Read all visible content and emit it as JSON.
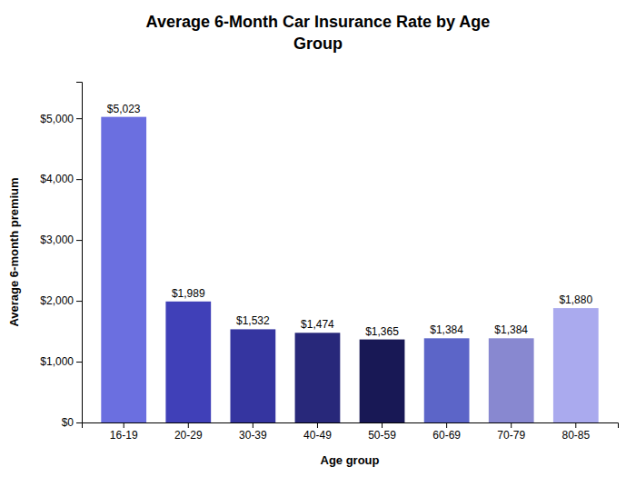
{
  "chart_data": {
    "type": "bar",
    "title": "Average 6-Month Car Insurance Rate by Age\nGroup",
    "x_label": "Age group",
    "y_label": "Average 6-month premium",
    "categories": [
      "16-19",
      "20-29",
      "30-39",
      "40-49",
      "50-59",
      "60-69",
      "70-79",
      "80-85"
    ],
    "values": [
      5023,
      1989,
      1532,
      1474,
      1365,
      1384,
      1384,
      1880
    ],
    "value_labels": [
      "$5,023",
      "$1,989",
      "$1,532",
      "$1,474",
      "$1,365",
      "$1,384",
      "$1,384",
      "$1,880"
    ],
    "data_labels": true,
    "colors": [
      "#6B6FE0",
      "#4040B8",
      "#3535A0",
      "#28287A",
      "#181855",
      "#5C65C8",
      "#8888D0",
      "#AAAAEE"
    ],
    "ylim": [
      0,
      5600
    ],
    "yticks": [
      {
        "value": 0,
        "label": "$0"
      },
      {
        "value": 1000,
        "label": "$1,000"
      },
      {
        "value": 2000,
        "label": "$2,000"
      },
      {
        "value": 3000,
        "label": "$3,000"
      },
      {
        "value": 4000,
        "label": "$4,000"
      },
      {
        "value": 5000,
        "label": "$5,000"
      }
    ],
    "grid": false
  }
}
